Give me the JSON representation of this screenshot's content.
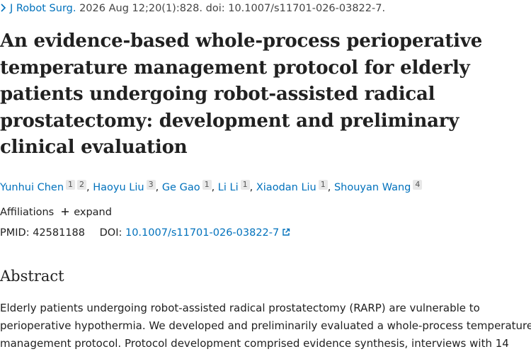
{
  "citation": {
    "journal": "J Robot Surg.",
    "details": "2026 Aug 12;20(1):828. doi: 10.1007/s11701-026-03822-7."
  },
  "title": "An evidence-based whole-process perioperative temperature management protocol for elderly patients undergoing robot-assisted radical prostatectomy: development and preliminary clinical evaluation",
  "authors": [
    {
      "name": "Yunhui Chen",
      "affiliations": [
        "1",
        "2"
      ]
    },
    {
      "name": "Haoyu Liu",
      "affiliations": [
        "3"
      ]
    },
    {
      "name": "Ge Gao",
      "affiliations": [
        "1"
      ]
    },
    {
      "name": "Li Li",
      "affiliations": [
        "1"
      ]
    },
    {
      "name": "Xiaodan Liu",
      "affiliations": [
        "1"
      ]
    },
    {
      "name": "Shouyan Wang",
      "affiliations": [
        "4"
      ]
    }
  ],
  "affiliations": {
    "label": "Affiliations",
    "toggle": "expand"
  },
  "identifiers": {
    "pmid_label": "PMID:",
    "pmid": "42581188",
    "doi_label": "DOI:",
    "doi": "10.1007/s11701-026-03822-7"
  },
  "abstract": {
    "heading": "Abstract",
    "lines": [
      "Elderly patients undergoing robot-assisted radical prostatectomy (RARP) are vulnerable to",
      "perioperative hypothermia. We developed and preliminarily evaluated a whole-process temperature-",
      "management protocol. Protocol development comprised evidence synthesis, interviews with 14"
    ]
  }
}
